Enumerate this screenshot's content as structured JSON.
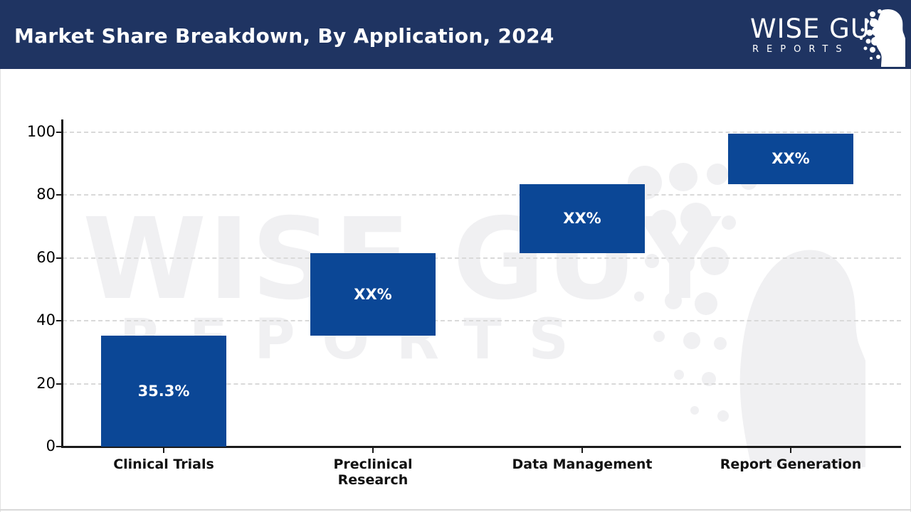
{
  "header": {
    "title": "Market Share Breakdown, By Application, 2024",
    "logo": {
      "line1": "WISE GUY",
      "line2": "REPORTS",
      "head_icon": "profile-head-dots-icon"
    }
  },
  "watermark": {
    "line1": "WISE GUY",
    "line2": "REPORTS",
    "head_icon": "profile-head-dots-watermark-icon"
  },
  "colors": {
    "header_bg": "#1f3462",
    "bar_fill": "#0b4796",
    "bar_label": "#ffffff",
    "gridline": "#d9d9d9",
    "axis": "#1a1a1a",
    "watermark": "#f0f0f2"
  },
  "chart_data": {
    "type": "bar",
    "subtype": "waterfall",
    "title": "Market Share Breakdown, By Application, 2024",
    "categories": [
      "Clinical Trials",
      "Preclinical\nResearch",
      "Data Management",
      "Report Generation"
    ],
    "segments": [
      {
        "category": "Clinical Trials",
        "start": 0,
        "end": 35.3,
        "label": "35.3%"
      },
      {
        "category": "Preclinical Research",
        "start": 35.3,
        "end": 61.5,
        "label": "XX%"
      },
      {
        "category": "Data Management",
        "start": 61.5,
        "end": 83.5,
        "label": "XX%"
      },
      {
        "category": "Report Generation",
        "start": 83.5,
        "end": 99.5,
        "label": "XX%"
      }
    ],
    "yticks": [
      0,
      20,
      40,
      60,
      80,
      100
    ],
    "ylim": [
      0,
      104
    ],
    "xlabel": "",
    "ylabel": "",
    "grid": "horizontal-dashed",
    "legend": "none"
  }
}
